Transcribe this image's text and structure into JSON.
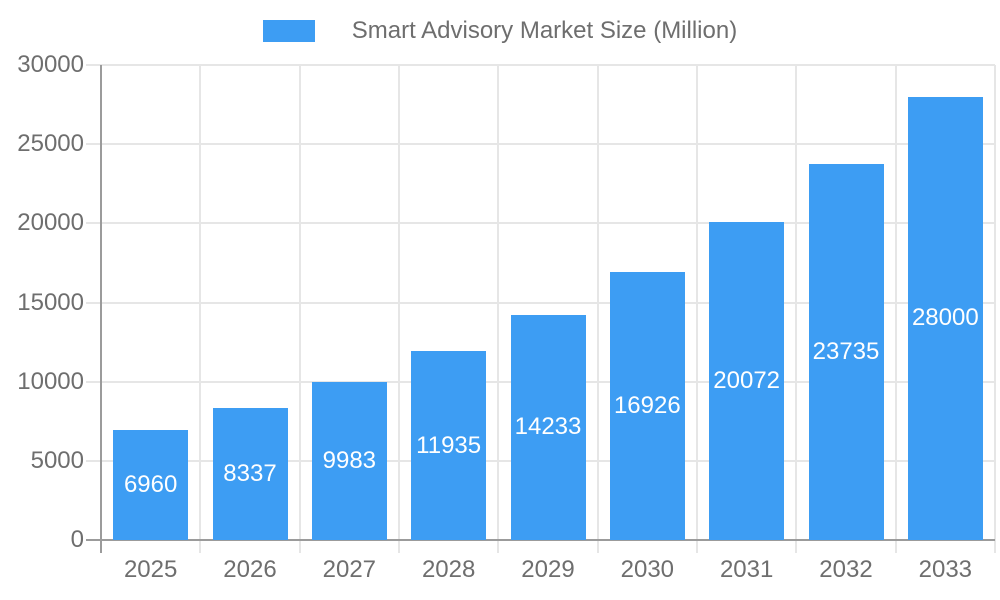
{
  "legend": {
    "label": "Smart Advisory Market Size (Million)"
  },
  "chart_data": {
    "type": "bar",
    "title": "",
    "xlabel": "",
    "ylabel": "",
    "categories": [
      "2025",
      "2026",
      "2027",
      "2028",
      "2029",
      "2030",
      "2031",
      "2032",
      "2033"
    ],
    "series": [
      {
        "name": "Smart Advisory Market Size (Million)",
        "values": [
          6960,
          8337,
          9983,
          11935,
          14233,
          16926,
          20072,
          23735,
          28000
        ]
      }
    ],
    "value_labels_shown": true,
    "ylim": [
      0,
      30000
    ],
    "yticks": [
      0,
      5000,
      10000,
      15000,
      20000,
      25000,
      30000
    ],
    "grid": true,
    "legend_position": "top",
    "colors": {
      "bar": "#3D9DF3",
      "value_label": "#FFFFFF",
      "axis_text": "#6E6E6E",
      "legend_text": "#6E6E6E",
      "grid_line": "#E6E6E6",
      "axis_line": "#9B9B9B",
      "background": "#FFFFFF"
    }
  }
}
